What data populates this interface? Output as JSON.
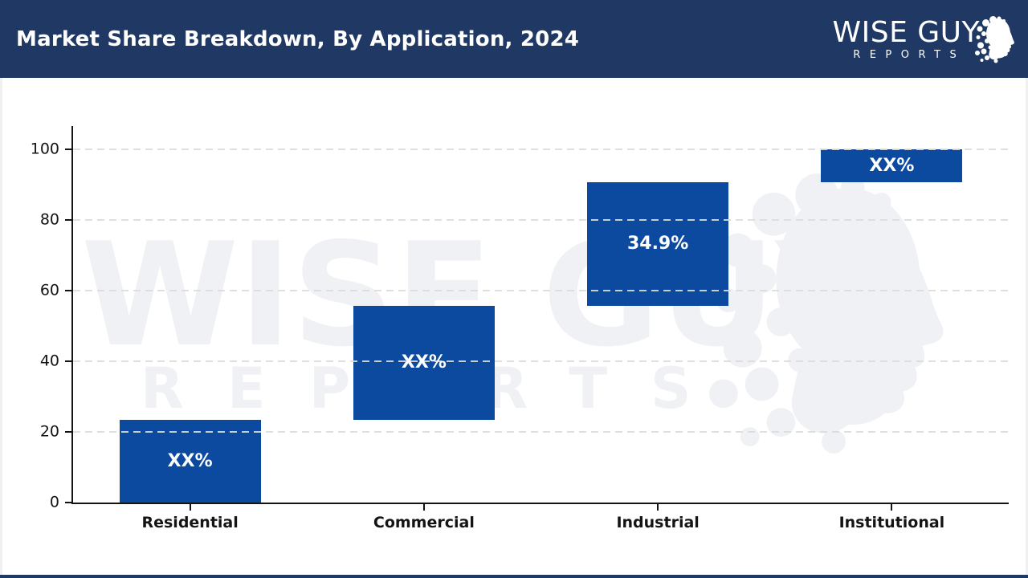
{
  "header": {
    "title": "Market Share Breakdown, By Application, 2024",
    "brand": {
      "name_top": "WISE GUY",
      "name_bottom": "REPORTS"
    }
  },
  "watermark": {
    "line1": "WISE GUY",
    "line2": "REPORTS"
  },
  "colors": {
    "header_bg": "#1f3864",
    "bar": "#0b4a9f",
    "bar_label": "#ffffff",
    "watermark": "#f0f1f4",
    "grid": "#dcdcdc",
    "axis": "#141414"
  },
  "chart_data": {
    "type": "bar",
    "subtype": "waterfall",
    "title": "Market Share Breakdown, By Application, 2024",
    "categories": [
      "Residential",
      "Commercial",
      "Industrial",
      "Institutional"
    ],
    "segments": [
      {
        "category": "Residential",
        "start": 0,
        "end": 23.4,
        "size": 23.4,
        "label": "XX%"
      },
      {
        "category": "Commercial",
        "start": 23.4,
        "end": 55.8,
        "size": 32.4,
        "label": "XX%"
      },
      {
        "category": "Industrial",
        "start": 55.8,
        "end": 90.7,
        "size": 34.9,
        "label": "34.9%"
      },
      {
        "category": "Institutional",
        "start": 90.7,
        "end": 100.0,
        "size": 9.3,
        "label": "XX%"
      }
    ],
    "y_ticks": [
      0,
      20,
      40,
      60,
      80,
      100
    ],
    "ylim": [
      0,
      106
    ],
    "xlabel": "",
    "ylabel": "",
    "grid": "horizontal-dashed",
    "legend": "none"
  }
}
